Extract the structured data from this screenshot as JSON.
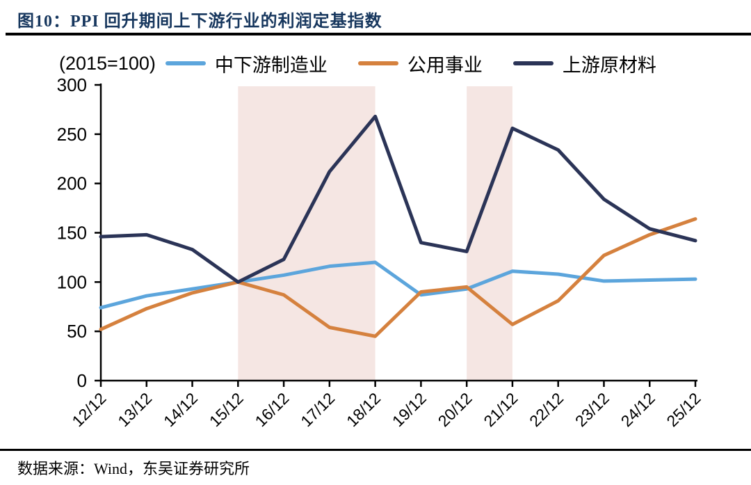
{
  "header": {
    "title": "图10：PPI 回升期间上下游行业的利润定基指数"
  },
  "footer": {
    "source": "数据来源：Wind，东吴证券研究所"
  },
  "colors": {
    "title_navy": "#17375E",
    "rule_black": "#000000",
    "band_pink": "#F5E6E3"
  },
  "chart_data": {
    "type": "line",
    "title": "PPI 回升期间上下游行业的利润定基指数",
    "unit_label": "(2015=100)",
    "legend_position": "top",
    "grid": false,
    "categories": [
      "12/12",
      "13/12",
      "14/12",
      "15/12",
      "16/12",
      "17/12",
      "18/12",
      "19/12",
      "20/12",
      "21/12",
      "22/12",
      "23/12",
      "24/12",
      "25/12"
    ],
    "yticks": [
      0,
      50,
      100,
      150,
      200,
      250,
      300
    ],
    "ylim": [
      0,
      300
    ],
    "series": [
      {
        "id": "mid-downstream-manufacturing",
        "name": "中下游制造业",
        "color": "#5CA5DC",
        "values": [
          74,
          86,
          93,
          100,
          107,
          116,
          120,
          87,
          93,
          111,
          108,
          101,
          102,
          103
        ]
      },
      {
        "id": "utilities",
        "name": "公用事业",
        "color": "#D5813E",
        "values": [
          52,
          73,
          89,
          100,
          87,
          54,
          45,
          90,
          95,
          57,
          81,
          127,
          148,
          164
        ]
      },
      {
        "id": "upstream-raw-materials",
        "name": "上游原材料",
        "color": "#2B3457",
        "values": [
          146,
          148,
          133,
          100,
          123,
          212,
          268,
          140,
          131,
          256,
          234,
          184,
          154,
          142
        ]
      }
    ],
    "highlight_bands": [
      {
        "from": "15/12",
        "to": "18/12"
      },
      {
        "from": "20/12",
        "to": "21/12"
      }
    ],
    "band_color": "#F5E6E3"
  }
}
